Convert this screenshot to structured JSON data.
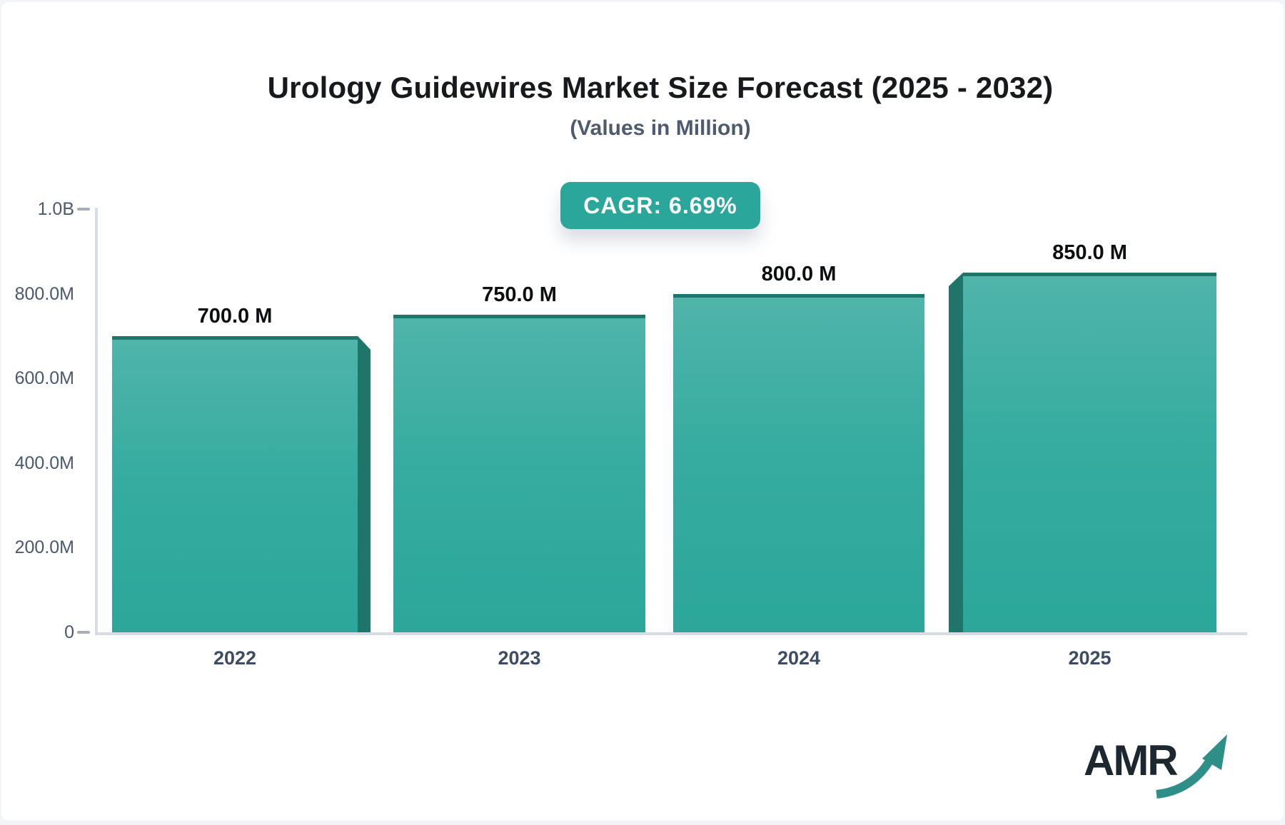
{
  "title": "Urology Guidewires Market Size Forecast (2025 - 2032)",
  "subtitle": "(Values in Million)",
  "cagr_badge": "CAGR: 6.69%",
  "logo": {
    "text": "AMR",
    "icon": "trend-up-arrow-icon"
  },
  "chart_data": {
    "type": "bar",
    "categories": [
      "2022",
      "2023",
      "2024",
      "2025"
    ],
    "values": [
      700,
      750,
      800,
      850
    ],
    "unit_millions": true,
    "bar_labels": [
      "700.0 M",
      "750.0 M",
      "800.0 M",
      "850.0 M"
    ],
    "title": "Urology Guidewires Market Size Forecast (2025 - 2032)",
    "subtitle": "(Values in Million)",
    "annotation": "CAGR: 6.69%",
    "xlabel": "",
    "ylabel": "",
    "ylim": [
      0,
      1000
    ],
    "yticks": [
      {
        "value": 0,
        "label": "0"
      },
      {
        "value": 200,
        "label": "200.0M"
      },
      {
        "value": 400,
        "label": "400.0M"
      },
      {
        "value": 600,
        "label": "600.0M"
      },
      {
        "value": 800,
        "label": "800.0M"
      },
      {
        "value": 1000,
        "label": "1.0B"
      }
    ],
    "grid": false,
    "legend": false,
    "bar_style": "3d-beveled",
    "colors": {
      "bar_gradient_top": "#50b4ab",
      "bar_gradient_bottom": "#2ba79a",
      "bar_edge_dark": "#20756b",
      "badge_background": "#2aa69a",
      "badge_text": "#ffffff",
      "axis_line": "#d9dce4",
      "tick_text": "#4b5870",
      "category_text": "#3e4c62",
      "value_label_text": "#0d0e10",
      "title_text": "#17191d",
      "subtitle_text": "#4e5a6e",
      "logo_text": "#1c2730",
      "logo_arrow": "#2d8f88"
    }
  }
}
